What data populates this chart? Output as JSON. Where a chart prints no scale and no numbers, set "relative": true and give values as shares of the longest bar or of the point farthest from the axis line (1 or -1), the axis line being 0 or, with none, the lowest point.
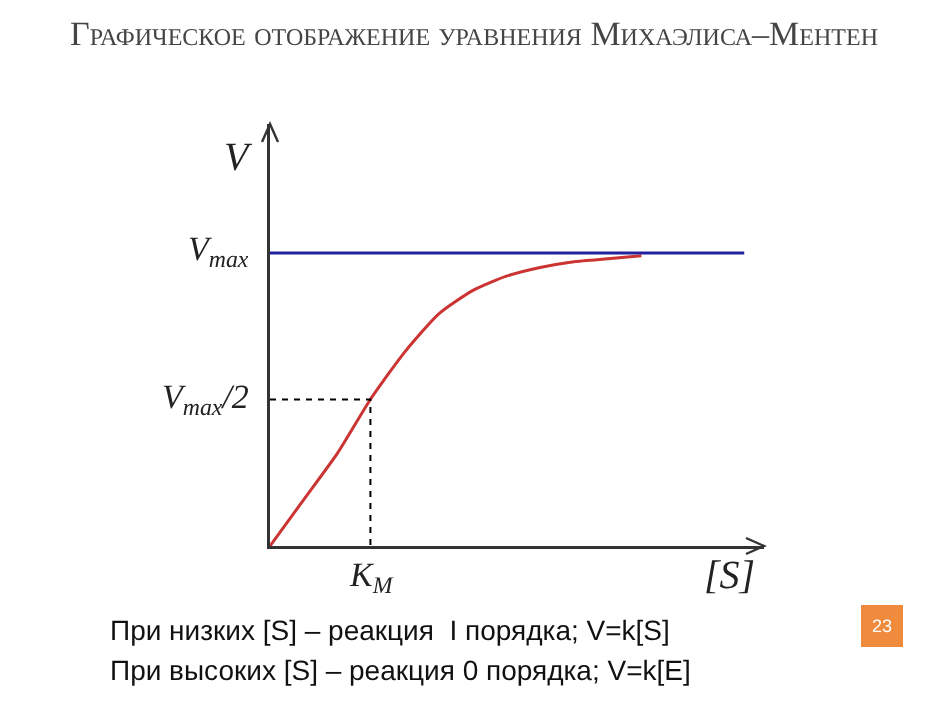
{
  "chart_data": {
    "type": "line",
    "title": "Графическое отображение уравнения Михаэлиса–Ментен",
    "xlabel": "[S]",
    "ylabel": "V",
    "categories": [
      null,
      null,
      null,
      null,
      null,
      null,
      null,
      null,
      null,
      null,
      null,
      null
    ],
    "relative": true,
    "series": [
      {
        "color": "#cc3333",
        "values": [
          0,
          0.16,
          0.32,
          0.51,
          0.67,
          0.8,
          0.88,
          0.93,
          0.96,
          0.98,
          0.99,
          1
        ]
      }
    ],
    "ref_lines": [
      {
        "axis": "y",
        "value": 1.01,
        "label": "V$_{max}$",
        "color": "#22229e",
        "line_style": "solid"
      },
      {
        "axis": "y",
        "value": 0.505,
        "label": "V$_{max}$/2",
        "color": "#000000",
        "line_style": "dotted"
      }
    ],
    "grid": false,
    "marker": "none",
    "line_style": "solid",
    "annotations": [
      "K$_{M}$",
      "При низких [S] – реакция  I порядка; V=k[S]",
      "При высоких [S] – реакция 0 порядка; V=k[E]",
      "23"
    ]
  }
}
